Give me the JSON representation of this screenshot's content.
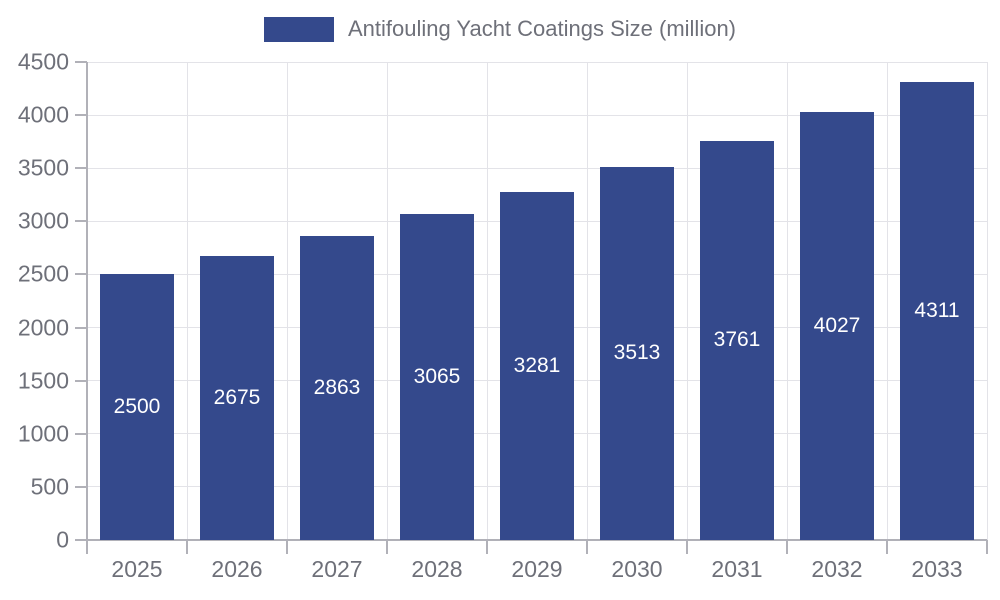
{
  "legend": {
    "label": "Antifouling Yacht Coatings Size (million)"
  },
  "colors": {
    "bar": "#34498c",
    "gridline": "#e3e3e8",
    "axis_line": "#b1b1b8",
    "axis_text": "#6e7079",
    "bar_label_text": "#ffffff",
    "background": "#ffffff"
  },
  "chart_data": {
    "type": "bar",
    "title": "Antifouling Yacht Coatings Size (million)",
    "categories": [
      "2025",
      "2026",
      "2027",
      "2028",
      "2029",
      "2030",
      "2031",
      "2032",
      "2033"
    ],
    "series": [
      {
        "name": "Antifouling Yacht Coatings Size (million)",
        "values": [
          2500,
          2675,
          2863,
          3065,
          3281,
          3513,
          3761,
          4027,
          4311
        ]
      }
    ],
    "values": [
      2500,
      2675,
      2863,
      3065,
      3281,
      3513,
      3761,
      4027,
      4311
    ],
    "bar_labels": [
      "2500",
      "2675",
      "2863",
      "3065",
      "3281",
      "3513",
      "3761",
      "4027",
      "4311"
    ],
    "xlabel": "",
    "ylabel": "",
    "ylim": [
      0,
      4500
    ],
    "yticks": [
      0,
      500,
      1000,
      1500,
      2000,
      2500,
      3000,
      3500,
      4000,
      4500
    ],
    "grid": true,
    "legend_position": "top-center",
    "bar_label_position": "inside-center"
  }
}
